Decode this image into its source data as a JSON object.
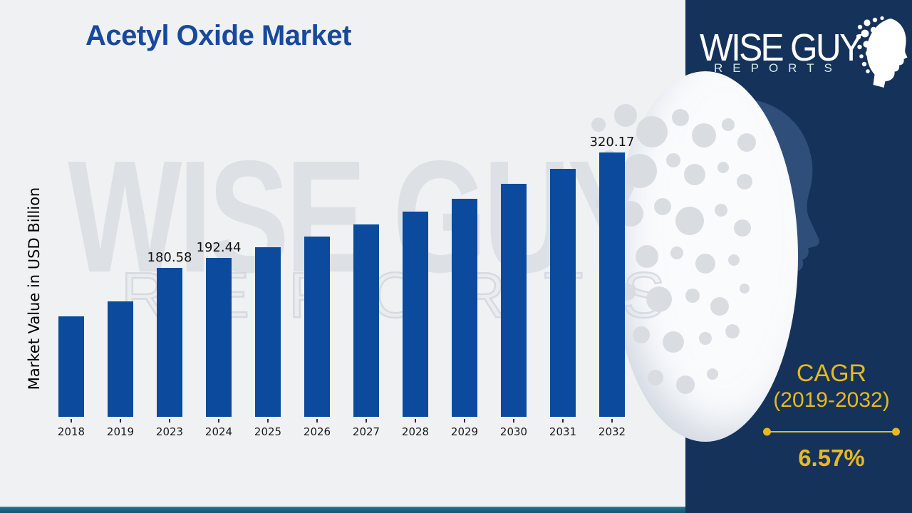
{
  "page": {
    "title": "Acetyl Oxide Market"
  },
  "y_axis_label": "Market Value in USD Billion",
  "watermark": {
    "line1": "WISE GUY",
    "line2": "REPORTS"
  },
  "logo": {
    "name": "WISE GUY",
    "sub": "REPORTS"
  },
  "cagr": {
    "label": "CAGR",
    "range": "(2019-2032)",
    "value": "6.57%"
  },
  "chart_data": {
    "type": "bar",
    "title": "Acetyl Oxide Market",
    "ylabel": "Market Value in USD Billion",
    "categories": [
      "2018",
      "2019",
      "2023",
      "2024",
      "2025",
      "2026",
      "2027",
      "2028",
      "2029",
      "2030",
      "2031",
      "2032"
    ],
    "values": [
      121.6,
      140.0,
      180.58,
      192.44,
      205.1,
      218.6,
      232.9,
      248.2,
      264.5,
      281.9,
      300.4,
      320.17
    ],
    "bar_labels": [
      "",
      "",
      "180.58",
      "192.44",
      "",
      "",
      "",
      "",
      "",
      "",
      "",
      "320.17"
    ],
    "ylim": [
      0,
      340
    ],
    "grid": false,
    "legend": false,
    "bar_color": "#0b4a9c"
  },
  "colors": {
    "background": "#f0f1f2",
    "bar": "#0b4a9c",
    "title": "#17499c",
    "panel_navy": "#15325a",
    "face_silhouette": "#2f4e7a",
    "gold": "#e6b91f",
    "teal_strip": "#17607f",
    "watermark_gray": "#ccd3dc",
    "logo_white": "#ffffff"
  }
}
